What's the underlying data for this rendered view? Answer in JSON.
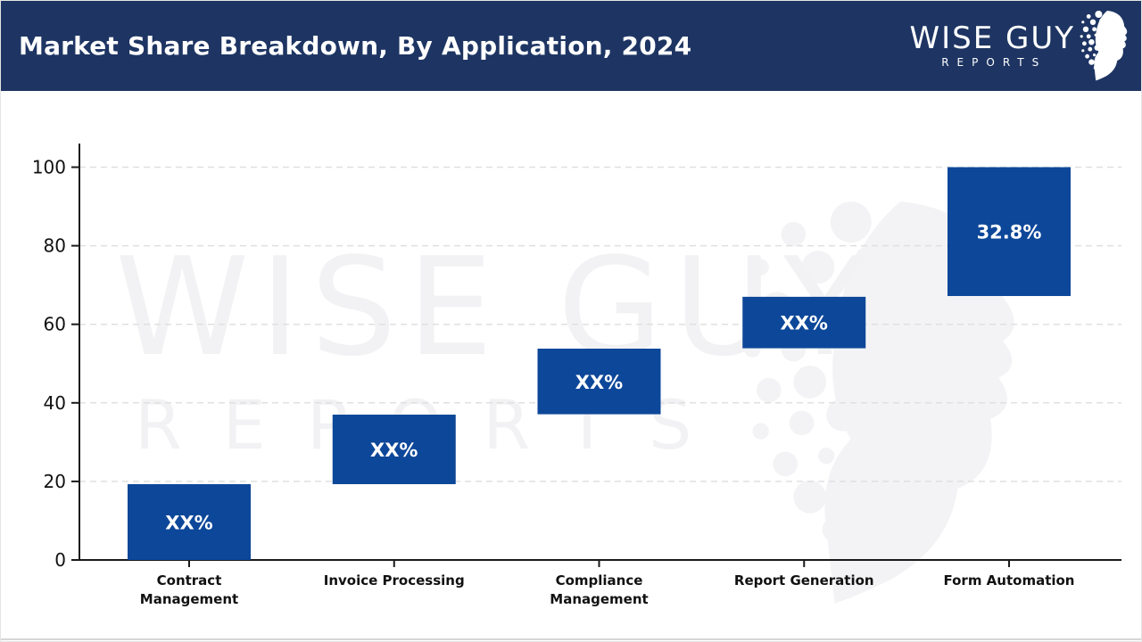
{
  "header": {
    "title": "Market Share Breakdown, By Application, 2024",
    "logo": {
      "line1": "WISE GUY",
      "line2": "REPORTS"
    }
  },
  "watermark": {
    "line1": "WISE GUY",
    "line2": "REPORTS"
  },
  "chart_data": {
    "type": "bar",
    "subtype": "floating-waterfall",
    "title": "Market Share Breakdown, By Application, 2024",
    "categories": [
      "Contract\nManagement",
      "Invoice Processing",
      "Compliance\nManagement",
      "Report Generation",
      "Form Automation"
    ],
    "series": [
      {
        "name": "Market share (%)",
        "segments": [
          {
            "category": "Contract Management",
            "start": 0,
            "end": 19.3,
            "label": "XX%"
          },
          {
            "category": "Invoice Processing",
            "start": 19.3,
            "end": 37.0,
            "label": "XX%"
          },
          {
            "category": "Compliance Management",
            "start": 37.1,
            "end": 53.8,
            "label": "XX%"
          },
          {
            "category": "Report Generation",
            "start": 53.9,
            "end": 67.0,
            "label": "XX%"
          },
          {
            "category": "Form Automation",
            "start": 67.2,
            "end": 100,
            "label": "32.8%"
          }
        ]
      }
    ],
    "ylim": [
      0,
      100
    ],
    "yticks": [
      "0",
      "20",
      "40",
      "60",
      "80",
      "100"
    ],
    "grid": {
      "horizontal": true,
      "style": "dashed"
    },
    "legend": "none",
    "bar_color": "#0d4799",
    "bar_label_color": "#ffffff"
  },
  "colors": {
    "header_bg": "#1e3563",
    "header_text": "#ffffff",
    "bar": "#0d4799",
    "bar_label": "#ffffff",
    "axis": "#1a1a1a",
    "tick_label": "#111111",
    "gridline": "#e0e0e0",
    "watermark": "#f2f2f4",
    "footer_line": "#d6d6d6"
  }
}
